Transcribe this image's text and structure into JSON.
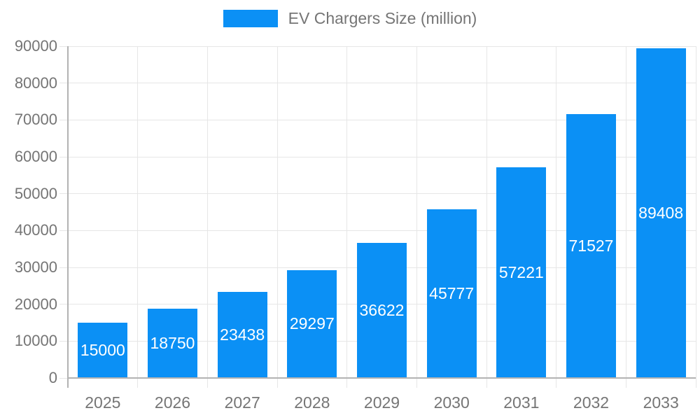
{
  "chart_data": {
    "type": "bar",
    "title": "EV Chargers Size (million)",
    "legend": {
      "label": "EV Chargers Size (million)",
      "position": "top-center"
    },
    "categories": [
      "2025",
      "2026",
      "2027",
      "2028",
      "2029",
      "2030",
      "2031",
      "2032",
      "2033"
    ],
    "series": [
      {
        "name": "EV Chargers Size (million)",
        "values": [
          15000,
          18750,
          23438,
          29297,
          36622,
          45777,
          57221,
          71527,
          89408
        ]
      }
    ],
    "bar_value_labels": [
      "15000",
      "18750",
      "23438",
      "29297",
      "36622",
      "45777",
      "57221",
      "71527",
      "89408"
    ],
    "xlabel": "",
    "ylabel": "",
    "ylim": [
      0,
      90000
    ],
    "ytick_step": 10000,
    "ytick_labels": [
      "0",
      "10000",
      "20000",
      "30000",
      "40000",
      "50000",
      "60000",
      "70000",
      "80000",
      "90000"
    ],
    "grid": "on",
    "colors": {
      "bar": "#0b90f5",
      "bar_value_label": "#ffffff",
      "axis_text": "#757575",
      "legend_text": "#757575",
      "grid_line": "#e6e6e6",
      "axis_line": "#b3b3b3",
      "background": "#ffffff"
    }
  }
}
